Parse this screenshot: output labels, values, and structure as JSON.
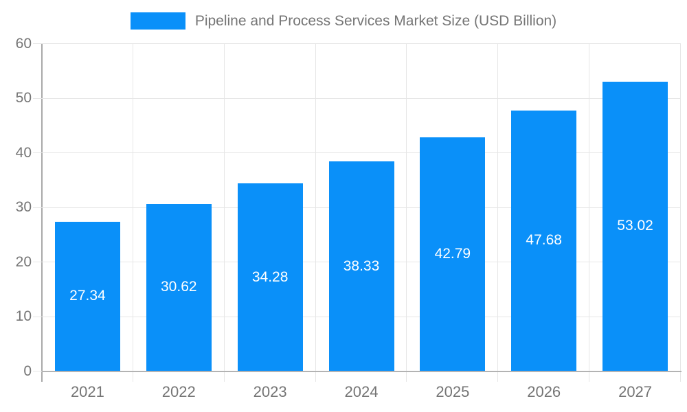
{
  "chart_data": {
    "type": "bar",
    "title": "Pipeline and Process Services Market Size (USD Billion)",
    "categories": [
      "2021",
      "2022",
      "2023",
      "2024",
      "2025",
      "2026",
      "2027"
    ],
    "values": [
      27.34,
      30.62,
      34.28,
      38.33,
      42.79,
      47.68,
      53.02
    ],
    "value_labels": [
      "27.34",
      "30.62",
      "34.28",
      "38.33",
      "42.79",
      "47.68",
      "53.02"
    ],
    "ylim": [
      0,
      60
    ],
    "yticks": [
      0,
      10,
      20,
      30,
      40,
      50,
      60
    ],
    "xlabel": "",
    "ylabel": "",
    "grid": true,
    "legend_position": "top-center",
    "colors": {
      "bar": "#0a90f9",
      "value_label": "#ffffff",
      "axis_text": "#757575",
      "gridline": "#e6e6e6",
      "axis_line": "#b3b3b3",
      "y_axis_line": "#a9a9a9",
      "background": "#ffffff"
    }
  }
}
